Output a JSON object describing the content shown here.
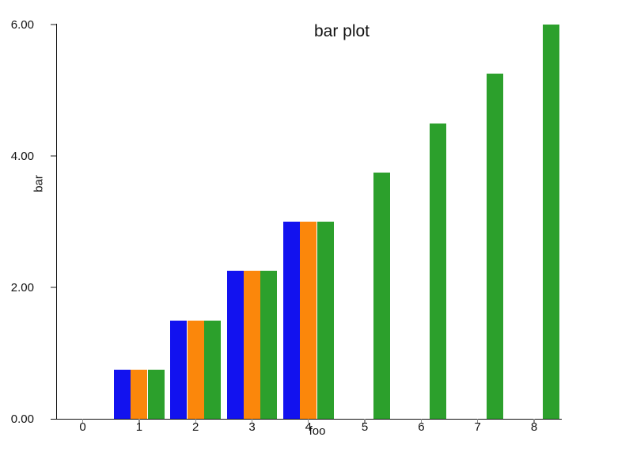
{
  "chart_data": {
    "type": "bar",
    "title": "bar plot",
    "xlabel": "foo",
    "ylabel": "bar",
    "grid": false,
    "legend": "none",
    "xlim": [
      -0.47,
      8.49
    ],
    "ylim": [
      0,
      6
    ],
    "x_tick_values": [
      0,
      1,
      2,
      3,
      4,
      5,
      6,
      7,
      8
    ],
    "x_tick_labels": [
      "0",
      "1",
      "2",
      "3",
      "4",
      "5",
      "6",
      "7",
      "8"
    ],
    "y_tick_values": [
      0,
      2,
      4,
      6
    ],
    "y_tick_labels": [
      "0.00",
      "2.00",
      "4.00",
      "6.00"
    ],
    "series": [
      {
        "name": "blue-series",
        "color": "#1212ef",
        "x": [
          1,
          2,
          3,
          4
        ],
        "values": [
          0.75,
          1.5,
          2.25,
          3.0
        ]
      },
      {
        "name": "orange-series",
        "color": "#fb870b",
        "x": [
          1,
          2,
          3,
          4
        ],
        "values": [
          0.75,
          1.5,
          2.25,
          3.0
        ]
      },
      {
        "name": "green-series",
        "color": "#2ca02c",
        "x": [
          1,
          2,
          3,
          4,
          5,
          6,
          7,
          8
        ],
        "values": [
          0.75,
          1.5,
          2.25,
          3.0,
          3.75,
          4.5,
          5.25,
          6.0
        ]
      }
    ],
    "axis_color": "#111111",
    "tick_color": "#8c8c8c"
  }
}
